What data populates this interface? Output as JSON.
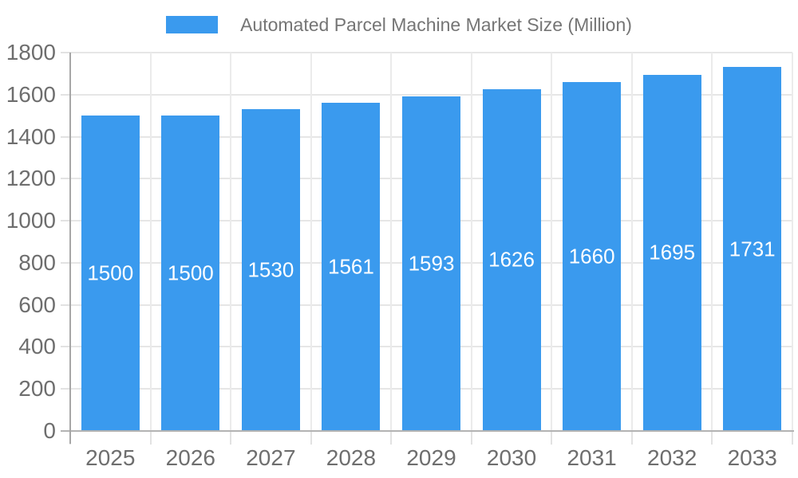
{
  "legend": {
    "swatch_icon": "legend-swatch",
    "label": "Automated Parcel Machine Market Size (Million)"
  },
  "chart_data": {
    "type": "bar",
    "title": "Automated Parcel Machine Market Size (Million)",
    "xlabel": "",
    "ylabel": "",
    "categories": [
      "2025",
      "2026",
      "2027",
      "2028",
      "2029",
      "2030",
      "2031",
      "2032",
      "2033"
    ],
    "values": [
      1500,
      1500,
      1530,
      1561,
      1593,
      1626,
      1660,
      1695,
      1731
    ],
    "bar_value_labels": [
      "1500",
      "1500",
      "1530",
      "1561",
      "1593",
      "1626",
      "1660",
      "1695",
      "1731"
    ],
    "ylim": [
      0,
      1800
    ],
    "y_ticks": {
      "values": [
        0,
        200,
        400,
        600,
        800,
        1000,
        1200,
        1400,
        1600,
        1800
      ],
      "labels": [
        "0",
        "200",
        "400",
        "600",
        "800",
        "1000",
        "1200",
        "1400",
        "1600",
        "1800"
      ]
    },
    "grid": true,
    "legend_position": "top",
    "value_labels_position": "inside-center"
  },
  "colors": {
    "bar": "#3A9AEE",
    "grid_horizontal": "#E6E6E6",
    "grid_vertical": "#EBEBEB",
    "tick": "#E2E2E2",
    "axis_x_line": "#B3B3B3",
    "axis_y_line": "#A6A6A6",
    "axis_text": "#6E6E6E",
    "legend_text": "#757575",
    "bar_value_text": "#FFFFFF",
    "background": "#FFFFFF"
  }
}
